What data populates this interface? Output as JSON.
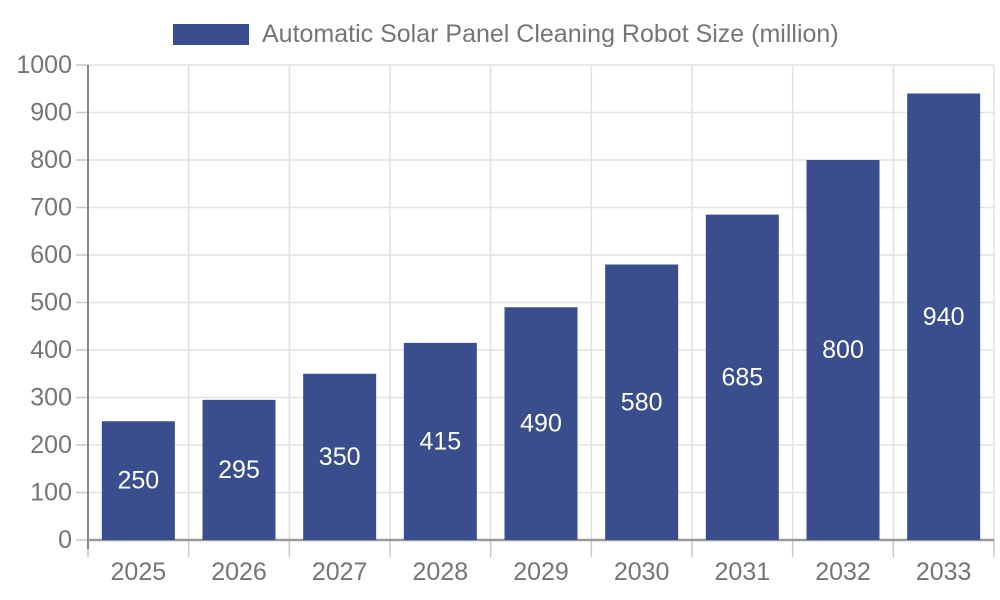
{
  "legend": {
    "label": "Automatic Solar Panel Cleaning Robot Size (million)"
  },
  "colors": {
    "bar": "#3A4D8C",
    "axis_label": "#757575",
    "value_label": "#ffffff",
    "grid_line": "#e2e2e2",
    "axis_line": "#878787",
    "baseline": "#9a9a9a",
    "tick": "#c9c9c9",
    "background": "#ffffff"
  },
  "chart_data": {
    "type": "bar",
    "title": "Automatic Solar Panel Cleaning Robot Size (million)",
    "categories": [
      "2025",
      "2026",
      "2027",
      "2028",
      "2029",
      "2030",
      "2031",
      "2032",
      "2033"
    ],
    "values": [
      250,
      295,
      350,
      415,
      490,
      580,
      685,
      800,
      940
    ],
    "xlabel": "",
    "ylabel": "",
    "ylim": [
      0,
      1000
    ],
    "ytick_step": 100,
    "ytick_labels": [
      "0",
      "100",
      "200",
      "300",
      "400",
      "500",
      "600",
      "700",
      "800",
      "900",
      "1000"
    ],
    "grid": true,
    "legend_position": "top",
    "bar_value_labels_inside": true
  }
}
